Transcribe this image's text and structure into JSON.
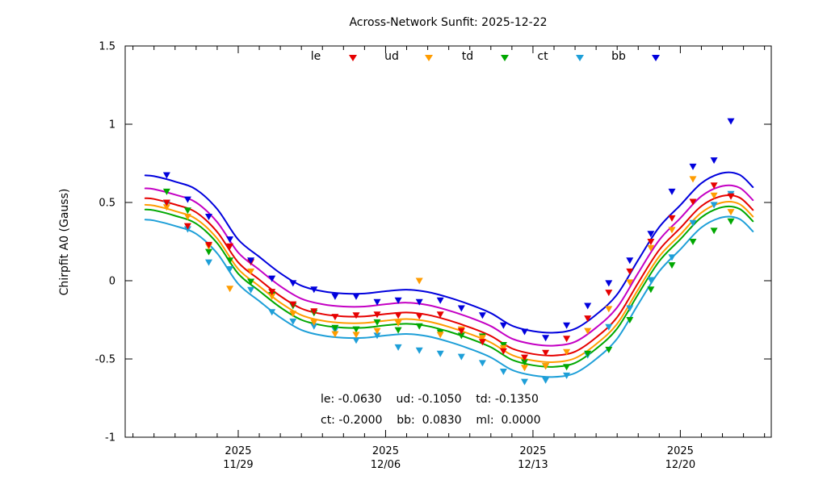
{
  "chart": {
    "title": "Across-Network Sunfit: 2025-12-22",
    "ylabel": "Chirpfit A0 (Gauss)",
    "background": "#ffffff",
    "axis_color": "#000000"
  },
  "legend": {
    "items": [
      {
        "label": "le",
        "color": "#e60000"
      },
      {
        "label": "ud",
        "color": "#ff9c00"
      },
      {
        "label": "td",
        "color": "#00a800"
      },
      {
        "label": "ct",
        "color": "#1e9fd8"
      },
      {
        "label": "bb",
        "color": "#0000dd"
      }
    ]
  },
  "stats": {
    "rows": [
      "le: -0.0630    ud: -0.1050    td: -0.1350",
      "ct: -0.2000    bb:  0.0830    ml:  0.0000"
    ]
  },
  "chart_data": {
    "type": "scatter",
    "title": "Across-Network Sunfit: 2025-12-22",
    "xlabel": "",
    "ylabel": "Chirpfit A0 (Gauss)",
    "x_epoch": "days since 2025-11-25",
    "xlim": [
      -1.37,
      29.32
    ],
    "ylim": [
      -1.0,
      1.5
    ],
    "grid": false,
    "legend_position": "top-inside",
    "y_ticks": [
      {
        "v": -1.0,
        "label": "-1"
      },
      {
        "v": -0.5,
        "label": "-0.5"
      },
      {
        "v": 0.0,
        "label": "0"
      },
      {
        "v": 0.5,
        "label": "0.5"
      },
      {
        "v": 1.0,
        "label": "1"
      },
      {
        "v": 1.5,
        "label": "1.5"
      }
    ],
    "x_major_ticks": [
      {
        "t": 4,
        "label_line1": "2025",
        "label_line2": "11/29"
      },
      {
        "t": 11,
        "label_line1": "2025",
        "label_line2": "12/06"
      },
      {
        "t": 18,
        "label_line1": "2025",
        "label_line2": "12/13"
      },
      {
        "t": 25,
        "label_line1": "2025",
        "label_line2": "12/20"
      }
    ],
    "x_minor_tick_step": 1,
    "fit_values": {
      "le": -0.063,
      "ud": -0.105,
      "td": -0.135,
      "ct": -0.2,
      "bb": 0.083,
      "ml": 0.0
    },
    "base_curve_ml": [
      [
        -0.42,
        0.59
      ],
      [
        0,
        0.585
      ],
      [
        1,
        0.55
      ],
      [
        2,
        0.5
      ],
      [
        3,
        0.375
      ],
      [
        4,
        0.18
      ],
      [
        5,
        0.07
      ],
      [
        6,
        -0.035
      ],
      [
        7,
        -0.115
      ],
      [
        8,
        -0.15
      ],
      [
        9,
        -0.165
      ],
      [
        10,
        -0.165
      ],
      [
        11,
        -0.15
      ],
      [
        12,
        -0.14
      ],
      [
        13,
        -0.155
      ],
      [
        14,
        -0.19
      ],
      [
        15,
        -0.235
      ],
      [
        16,
        -0.29
      ],
      [
        17,
        -0.37
      ],
      [
        18,
        -0.405
      ],
      [
        19,
        -0.415
      ],
      [
        20,
        -0.39
      ],
      [
        21,
        -0.3
      ],
      [
        22,
        -0.17
      ],
      [
        23,
        0.05
      ],
      [
        24,
        0.26
      ],
      [
        25,
        0.4
      ],
      [
        26,
        0.54
      ],
      [
        27,
        0.605
      ],
      [
        27.8,
        0.595
      ],
      [
        28.45,
        0.515
      ]
    ],
    "series": [
      {
        "name": "ct",
        "color": "#1e9fd8",
        "offset": -0.2,
        "points": [
          [
            0.6,
            0.494
          ],
          [
            1.6,
            0.33
          ],
          [
            2.6,
            0.118
          ],
          [
            3.6,
            0.075
          ],
          [
            4.6,
            -0.058
          ],
          [
            5.6,
            -0.2
          ],
          [
            6.6,
            -0.26
          ],
          [
            7.6,
            -0.29
          ],
          [
            8.6,
            -0.315
          ],
          [
            9.6,
            -0.38
          ],
          [
            10.6,
            -0.35
          ],
          [
            11.6,
            -0.425
          ],
          [
            12.6,
            -0.445
          ],
          [
            13.6,
            -0.465
          ],
          [
            14.6,
            -0.485
          ],
          [
            15.6,
            -0.525
          ],
          [
            16.6,
            -0.58
          ],
          [
            17.6,
            -0.645
          ],
          [
            18.6,
            -0.635
          ],
          [
            19.6,
            -0.605
          ],
          [
            20.6,
            -0.475
          ],
          [
            21.6,
            -0.295
          ],
          [
            22.6,
            -0.175
          ],
          [
            23.6,
            0.005
          ],
          [
            24.6,
            0.15
          ],
          [
            25.6,
            0.37
          ],
          [
            26.6,
            0.485
          ],
          [
            27.4,
            0.555
          ]
        ]
      },
      {
        "name": "td",
        "color": "#00a800",
        "offset": -0.135,
        "points": [
          [
            0.6,
            0.57
          ],
          [
            1.6,
            0.45
          ],
          [
            2.6,
            0.185
          ],
          [
            3.6,
            0.13
          ],
          [
            4.6,
            -0.005
          ],
          [
            5.6,
            -0.09
          ],
          [
            6.6,
            -0.16
          ],
          [
            7.6,
            -0.205
          ],
          [
            8.6,
            -0.3
          ],
          [
            9.6,
            -0.31
          ],
          [
            10.6,
            -0.265
          ],
          [
            11.6,
            -0.315
          ],
          [
            12.6,
            -0.29
          ],
          [
            13.6,
            -0.33
          ],
          [
            14.6,
            -0.35
          ],
          [
            15.6,
            -0.355
          ],
          [
            16.6,
            -0.41
          ],
          [
            17.6,
            -0.52
          ],
          [
            18.6,
            -0.545
          ],
          [
            19.6,
            -0.55
          ],
          [
            20.6,
            -0.465
          ],
          [
            21.6,
            -0.44
          ],
          [
            22.6,
            -0.25
          ],
          [
            23.6,
            -0.055
          ],
          [
            24.6,
            0.1
          ],
          [
            25.6,
            0.25
          ],
          [
            26.6,
            0.32
          ],
          [
            27.4,
            0.38
          ]
        ]
      },
      {
        "name": "ud",
        "color": "#ff9c00",
        "offset": -0.105,
        "points": [
          [
            0.6,
            0.47
          ],
          [
            1.6,
            0.41
          ],
          [
            2.6,
            0.22
          ],
          [
            3.6,
            -0.05
          ],
          [
            4.6,
            0.06
          ],
          [
            5.6,
            -0.1
          ],
          [
            6.6,
            -0.21
          ],
          [
            7.6,
            -0.265
          ],
          [
            8.6,
            -0.34
          ],
          [
            9.6,
            -0.345
          ],
          [
            10.6,
            -0.32
          ],
          [
            11.6,
            -0.27
          ],
          [
            12.6,
            0.0
          ],
          [
            13.6,
            -0.345
          ],
          [
            14.6,
            -0.31
          ],
          [
            15.6,
            -0.365
          ],
          [
            16.6,
            -0.43
          ],
          [
            17.6,
            -0.555
          ],
          [
            18.6,
            -0.545
          ],
          [
            19.6,
            -0.455
          ],
          [
            20.6,
            -0.32
          ],
          [
            21.6,
            -0.18
          ],
          [
            22.6,
            -0.01
          ],
          [
            23.6,
            0.21
          ],
          [
            24.6,
            0.325
          ],
          [
            25.6,
            0.65
          ],
          [
            26.6,
            0.545
          ],
          [
            27.4,
            0.44
          ]
        ]
      },
      {
        "name": "le",
        "color": "#e60000",
        "offset": -0.063,
        "points": [
          [
            0.6,
            0.5
          ],
          [
            1.6,
            0.35
          ],
          [
            2.6,
            0.23
          ],
          [
            3.6,
            0.22
          ],
          [
            4.6,
            0.12
          ],
          [
            5.6,
            -0.07
          ],
          [
            6.6,
            -0.15
          ],
          [
            7.6,
            -0.195
          ],
          [
            8.6,
            -0.23
          ],
          [
            9.6,
            -0.22
          ],
          [
            10.6,
            -0.215
          ],
          [
            11.6,
            -0.22
          ],
          [
            12.6,
            -0.225
          ],
          [
            13.6,
            -0.215
          ],
          [
            14.6,
            -0.32
          ],
          [
            15.6,
            -0.39
          ],
          [
            16.6,
            -0.45
          ],
          [
            17.6,
            -0.49
          ],
          [
            18.6,
            -0.46
          ],
          [
            19.6,
            -0.37
          ],
          [
            20.6,
            -0.24
          ],
          [
            21.6,
            -0.075
          ],
          [
            22.6,
            0.06
          ],
          [
            23.6,
            0.25
          ],
          [
            24.6,
            0.4
          ],
          [
            25.6,
            0.505
          ],
          [
            26.6,
            0.61
          ],
          [
            27.4,
            0.54
          ]
        ]
      },
      {
        "name": "ml",
        "color": "#c400c4",
        "offset": 0.0,
        "points": []
      },
      {
        "name": "bb",
        "color": "#0000dd",
        "offset": 0.083,
        "points": [
          [
            0.6,
            0.675
          ],
          [
            1.6,
            0.52
          ],
          [
            2.6,
            0.41
          ],
          [
            3.6,
            0.265
          ],
          [
            4.6,
            0.13
          ],
          [
            5.6,
            0.015
          ],
          [
            6.6,
            -0.015
          ],
          [
            7.6,
            -0.055
          ],
          [
            8.6,
            -0.1
          ],
          [
            9.6,
            -0.1
          ],
          [
            10.6,
            -0.135
          ],
          [
            11.6,
            -0.125
          ],
          [
            12.6,
            -0.135
          ],
          [
            13.6,
            -0.125
          ],
          [
            14.6,
            -0.175
          ],
          [
            15.6,
            -0.22
          ],
          [
            16.6,
            -0.285
          ],
          [
            17.6,
            -0.325
          ],
          [
            18.6,
            -0.365
          ],
          [
            19.6,
            -0.285
          ],
          [
            20.6,
            -0.16
          ],
          [
            21.6,
            -0.015
          ],
          [
            22.6,
            0.13
          ],
          [
            23.6,
            0.3
          ],
          [
            24.6,
            0.57
          ],
          [
            25.6,
            0.73
          ],
          [
            26.6,
            0.77
          ],
          [
            27.4,
            1.02
          ]
        ]
      }
    ]
  }
}
